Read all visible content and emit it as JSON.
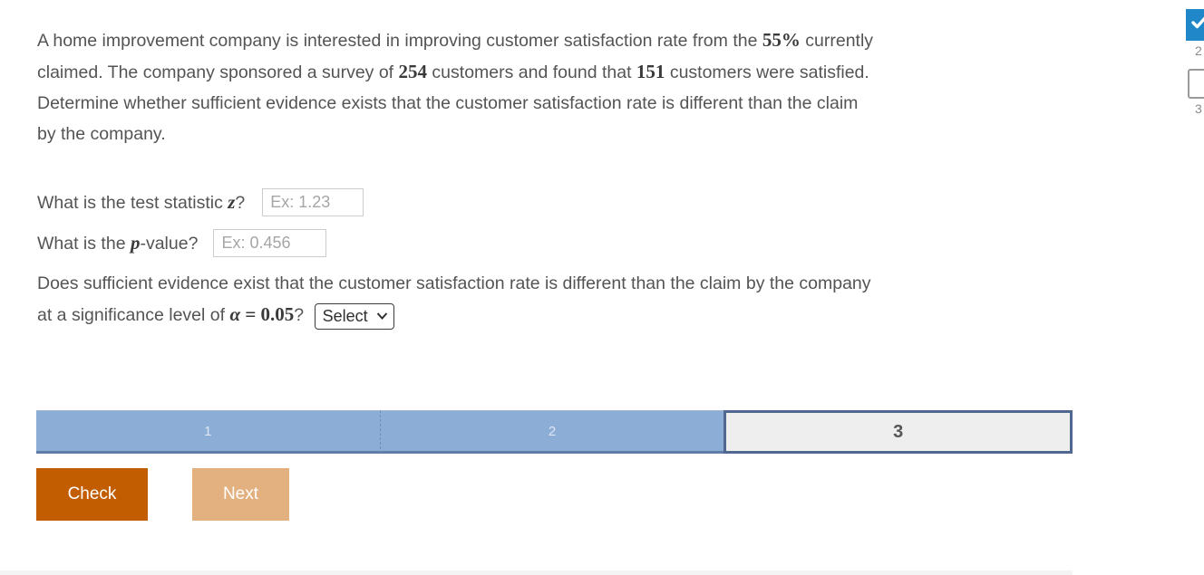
{
  "problem": {
    "segments": [
      {
        "t": "A home improvement company is interested in improving customer satisfaction rate from the "
      },
      {
        "t": "55%",
        "math": true
      },
      {
        "t": " currently"
      },
      {
        "br": true
      },
      {
        "t": "claimed. The company sponsored a survey of "
      },
      {
        "t": "254",
        "math": true
      },
      {
        "t": " customers and found that "
      },
      {
        "t": "151",
        "math": true
      },
      {
        "t": " customers were satisfied."
      },
      {
        "br": true
      },
      {
        "t": "Determine whether sufficient evidence exists that the customer satisfaction rate is different than the claim"
      },
      {
        "br": true
      },
      {
        "t": "by the company."
      }
    ]
  },
  "questions": {
    "q1": {
      "label_segments": [
        {
          "t": "What is the test statistic "
        },
        {
          "t": "z",
          "math": true,
          "italic": true
        },
        {
          "t": "?"
        }
      ],
      "input_value": "",
      "input_placeholder": "Ex: 1.23"
    },
    "q2": {
      "label_segments": [
        {
          "t": "What is the "
        },
        {
          "t": "p",
          "math": true,
          "italic": true
        },
        {
          "t": "-value?"
        }
      ],
      "input_value": "",
      "input_placeholder": "Ex: 0.456"
    },
    "q3": {
      "label_segments": [
        {
          "t": "Does sufficient evidence exist that the customer satisfaction rate is different than the claim by the company"
        },
        {
          "br": true
        },
        {
          "t": "at a significance level of "
        },
        {
          "t": "α",
          "math": true,
          "italic": true
        },
        {
          "t": " = 0.05",
          "math": true
        },
        {
          "t": "? "
        }
      ],
      "select_value": "Select"
    }
  },
  "progress": {
    "steps": [
      {
        "label": "1",
        "state": "completed"
      },
      {
        "label": "2",
        "state": "completed"
      },
      {
        "label": "3",
        "state": "active"
      }
    ]
  },
  "actions": {
    "check_label": "Check",
    "next_label": "Next"
  },
  "margin_indicators": {
    "completed_icon": "check-icon",
    "item2_label": "2",
    "item3_label": "3"
  },
  "colors": {
    "check_button": "#c25d02",
    "next_button_disabled": "#e3b07f",
    "progress_fill": "#8cadd6",
    "progress_active_border": "#50688f",
    "progress_active_bg": "#eeeeee",
    "completed_badge_blue": "#2088c8",
    "body_text": "#545454"
  }
}
